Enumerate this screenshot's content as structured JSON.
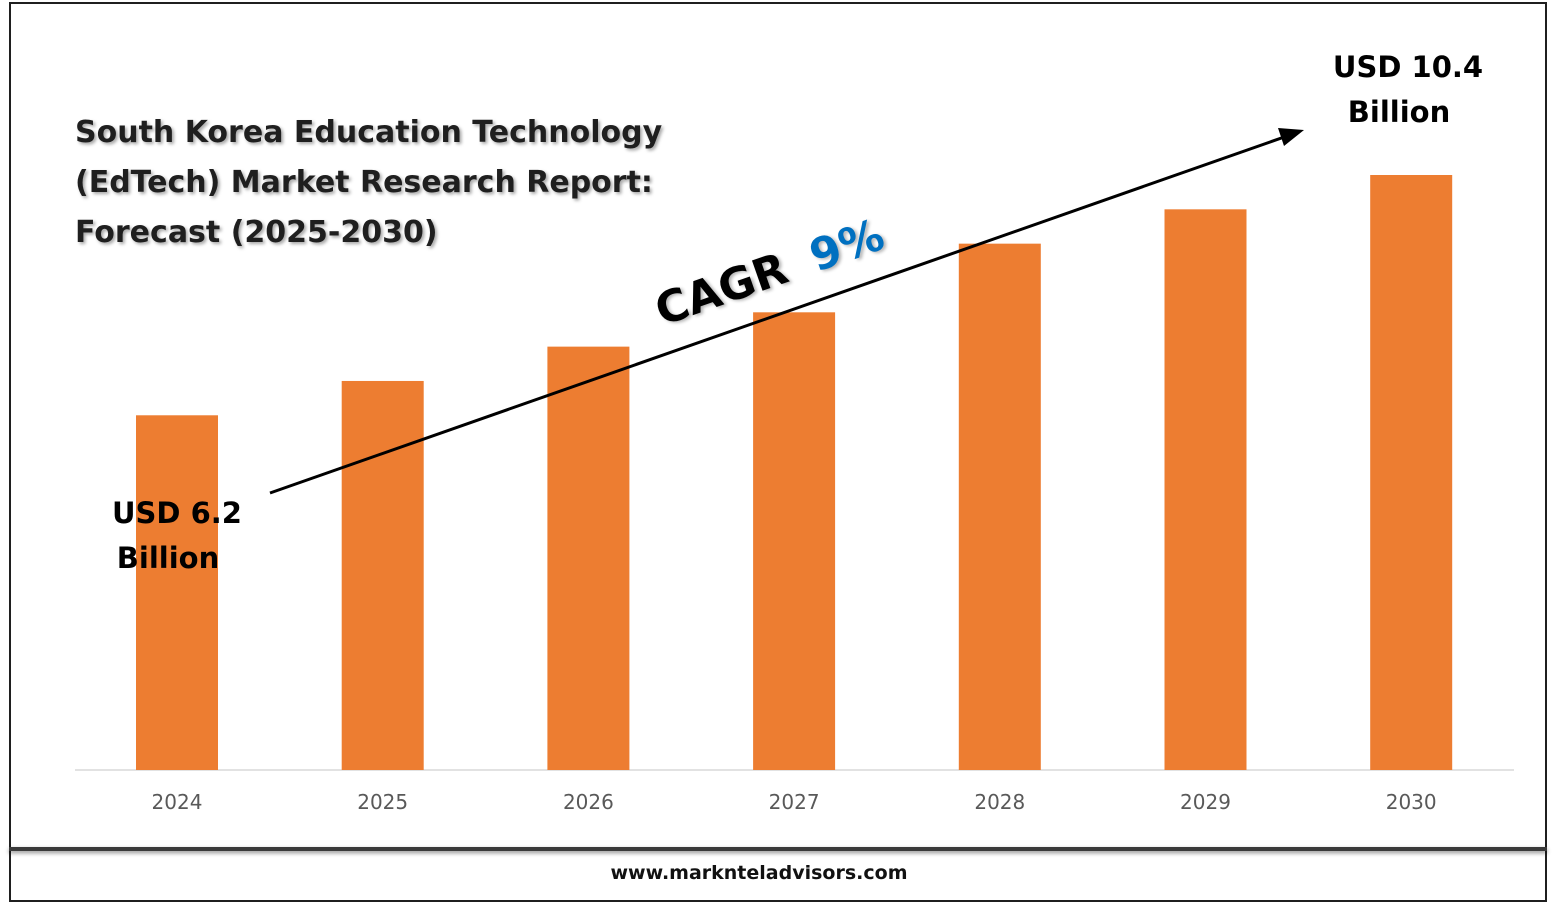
{
  "chart_data": {
    "type": "bar",
    "title": "South Korea Education Technology (EdTech) Market Research Report: Forecast (2025-2030)",
    "categories": [
      "2024",
      "2025",
      "2026",
      "2027",
      "2028",
      "2029",
      "2030"
    ],
    "values": [
      6.2,
      6.8,
      7.4,
      8.0,
      9.2,
      9.8,
      10.4
    ],
    "unit": "USD Billion",
    "ylim": [
      0,
      10.4
    ],
    "grid": false,
    "bar_color": "#ED7D31",
    "annotations": {
      "start_line1": "USD 6.2",
      "start_line2": "Billion",
      "end_line1": "USD 10.4",
      "end_line2": "Billion",
      "cagr_label": "CAGR",
      "cagr_value": "9%",
      "cagr_color": "#0070C0"
    }
  },
  "footer": {
    "website": "www.marknteladvisors.com"
  }
}
